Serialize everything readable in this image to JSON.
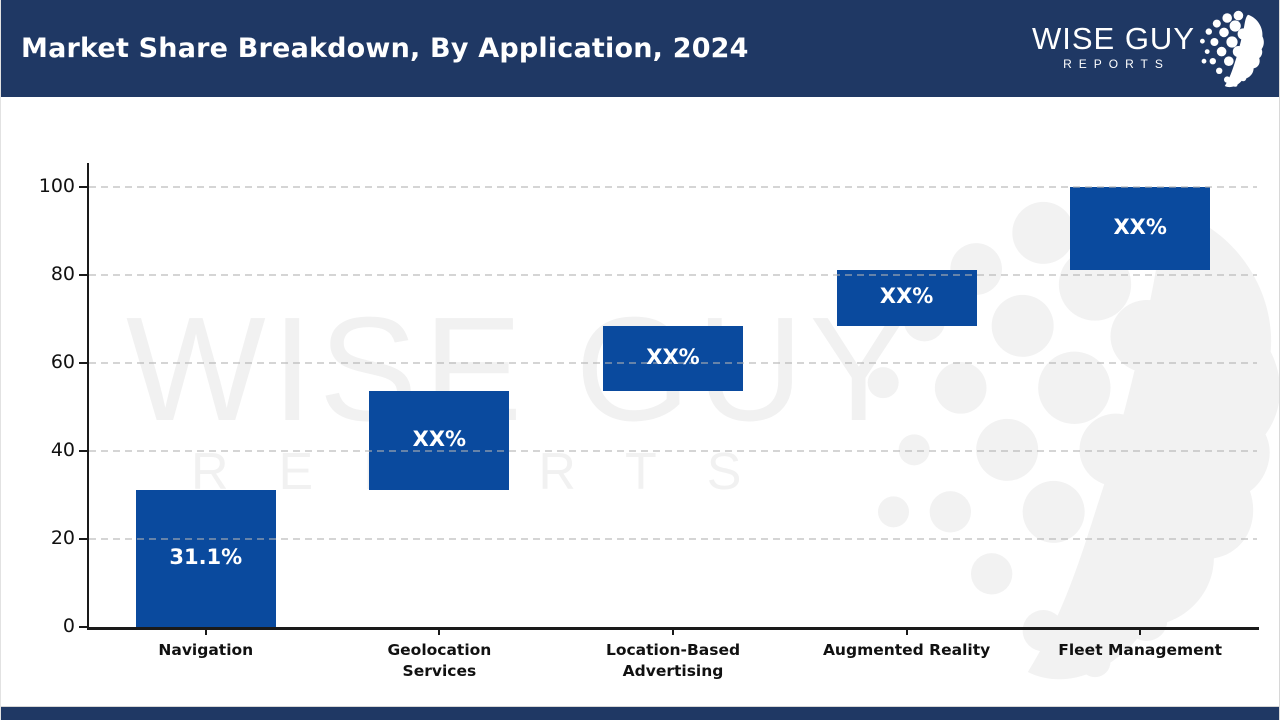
{
  "header": {
    "title": "Market Share Breakdown, By Application, 2024",
    "bg_color": "#1f3864",
    "logo_line1": "WISE GUY",
    "logo_line2": "REPORTS"
  },
  "watermark": {
    "line1": "WISE GUY",
    "line2": "REPORTS"
  },
  "chart_data": {
    "type": "bar",
    "subtype": "waterfall",
    "title": "Market Share Breakdown, By Application, 2024",
    "xlabel": "",
    "ylabel": "",
    "ylim": [
      0,
      106
    ],
    "yticks": [
      0,
      20,
      40,
      60,
      80,
      100
    ],
    "grid": "horizontal-dashed",
    "legend": "none",
    "bar_color": "#0a4a9e",
    "grid_color": "#e0e0e0",
    "categories": [
      "Navigation",
      "Geolocation Services",
      "Location-Based Advertising",
      "Augmented Reality",
      "Fleet Management"
    ],
    "bars": [
      {
        "category": "Navigation",
        "lines": [
          "Navigation"
        ],
        "start": 0,
        "end": 31.1,
        "label": "31.1%"
      },
      {
        "category": "Geolocation Services",
        "lines": [
          "Geolocation",
          "Services"
        ],
        "start": 31.1,
        "end": 53.6,
        "label": "XX%"
      },
      {
        "category": "Location-Based Advertising",
        "lines": [
          "Location-Based",
          "Advertising"
        ],
        "start": 53.6,
        "end": 68.4,
        "label": "XX%"
      },
      {
        "category": "Augmented Reality",
        "lines": [
          "Augmented Reality"
        ],
        "start": 68.4,
        "end": 81.1,
        "label": "XX%"
      },
      {
        "category": "Fleet Management",
        "lines": [
          "Fleet Management"
        ],
        "start": 81.1,
        "end": 100,
        "label": "XX%"
      }
    ]
  },
  "footer": {
    "bg_color": "#1f3864"
  }
}
